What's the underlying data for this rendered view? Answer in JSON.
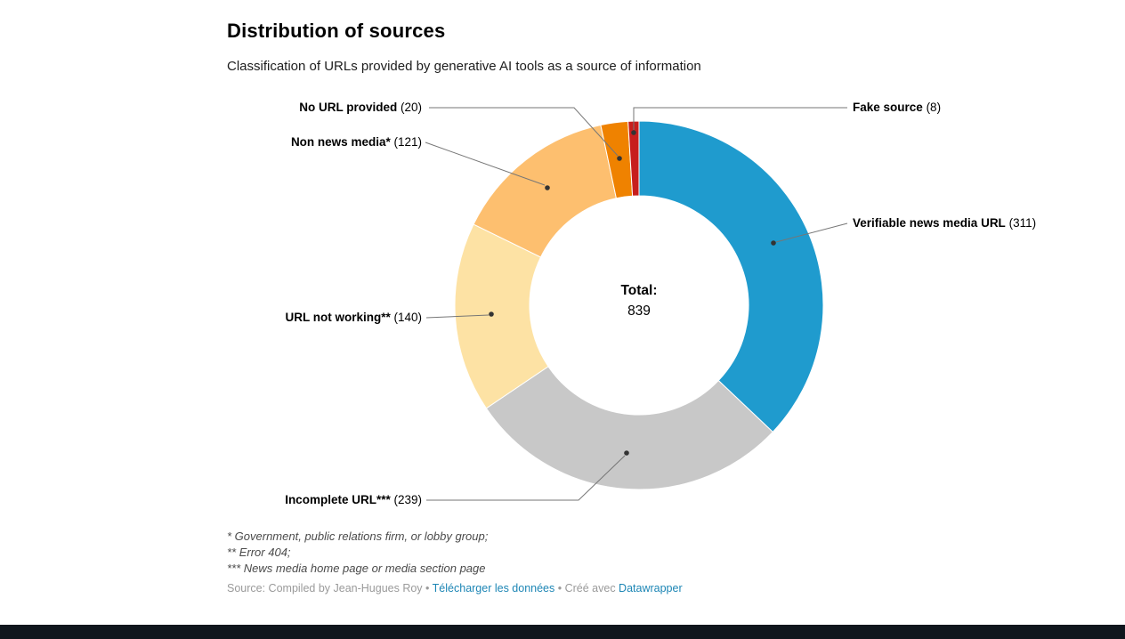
{
  "header": {
    "title": "Distribution of sources",
    "subtitle": "Classification of URLs provided by generative AI tools as a source of information"
  },
  "chart_data": {
    "type": "pie",
    "subtype": "donut",
    "title": "Distribution of sources",
    "total": 839,
    "total_label": "Total:",
    "total_value": "839",
    "legend_position": "callout-labels",
    "segments": [
      {
        "label": "Verifiable news media URL",
        "value": 311,
        "display_count": "(311)",
        "color": "#1f9bce"
      },
      {
        "label": "Incomplete URL***",
        "value": 239,
        "display_count": "(239)",
        "color": "#c8c8c8"
      },
      {
        "label": "URL not working**",
        "value": 140,
        "display_count": "(140)",
        "color": "#fde2a4"
      },
      {
        "label": "Non news media*",
        "value": 121,
        "display_count": "(121)",
        "color": "#fdbf6f"
      },
      {
        "label": "No URL provided",
        "value": 20,
        "display_count": "(20)",
        "color": "#ef8200"
      },
      {
        "label": "Fake source",
        "value": 8,
        "display_count": "(8)",
        "color": "#c71e1d"
      }
    ]
  },
  "footnotes": {
    "line1": "* Government, public relations firm, or lobby group;",
    "line2": "** Error 404;",
    "line3": "*** News media home page or media section page"
  },
  "source": {
    "prefix": "Source: Compiled by Jean-Hugues Roy",
    "sep1": " • ",
    "download_link": "Télécharger les données",
    "sep2": " • ",
    "created_with": "Créé avec ",
    "datawrapper_link": "Datawrapper",
    "link_color": "#1d86b5"
  }
}
